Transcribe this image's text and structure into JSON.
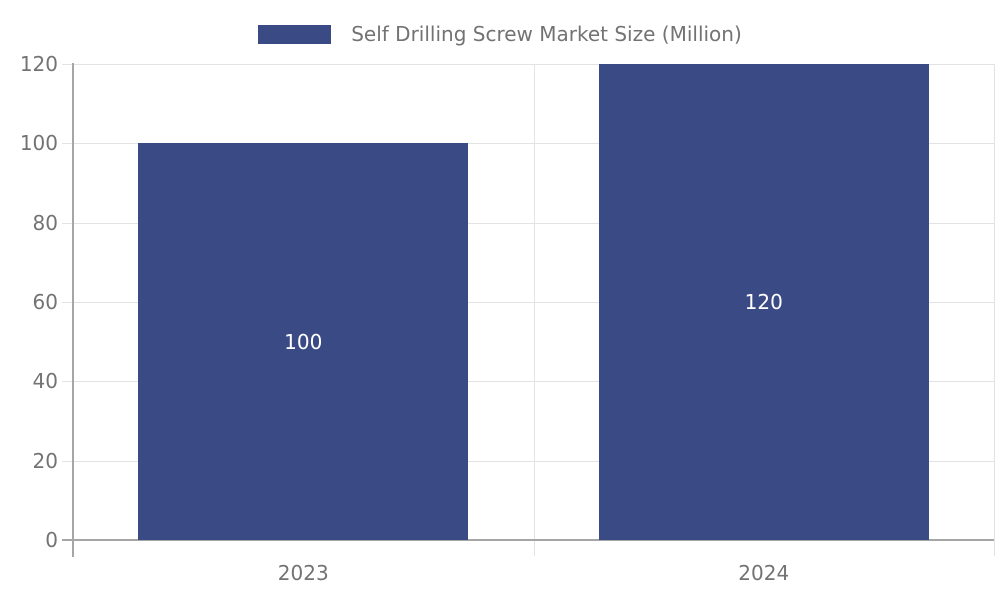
{
  "legend": {
    "label": "Self Drilling Screw Market Size (Million)"
  },
  "colors": {
    "bar": "#3A4A84",
    "axis": "#a6a6a6",
    "grid": "#e3e3e3",
    "tick_label": "#737373",
    "value_label": "#ffffff",
    "background": "#ffffff"
  },
  "chart_data": {
    "type": "bar",
    "title": "Self Drilling Screw Market Size (Million)",
    "categories": [
      "2023",
      "2024"
    ],
    "values": [
      100,
      120
    ],
    "value_labels": [
      "100",
      "120"
    ],
    "xlabel": "",
    "ylabel": "",
    "ylim": [
      0,
      120
    ],
    "yticks": [
      0,
      20,
      40,
      60,
      80,
      100,
      120
    ],
    "grid": true,
    "legend_position": "top-center",
    "legend_entries": [
      "Self Drilling Screw Market Size (Million)"
    ]
  }
}
